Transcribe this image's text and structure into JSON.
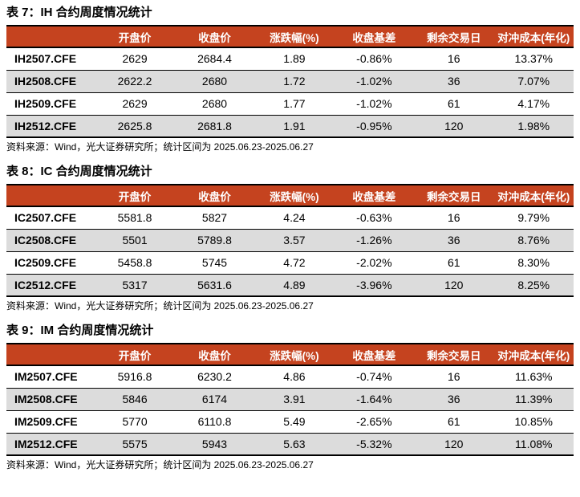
{
  "styles": {
    "header_bg": "#C5431F",
    "stripe_bg": "#DCDCDC",
    "header_text": "#FFFFFF"
  },
  "columns": [
    "",
    "开盘价",
    "收盘价",
    "涨跌幅(%)",
    "收盘基差",
    "剩余交易日",
    "对冲成本(年化)"
  ],
  "tables": [
    {
      "title": "表 7：IH 合约周度情况统计",
      "source": "资料来源：Wind，光大证券研究所；统计区间为 2025.06.23-2025.06.27",
      "rows": [
        [
          "IH2507.CFE",
          "2629",
          "2684.4",
          "1.89",
          "-0.86%",
          "16",
          "13.37%"
        ],
        [
          "IH2508.CFE",
          "2622.2",
          "2680",
          "1.72",
          "-1.02%",
          "36",
          "7.07%"
        ],
        [
          "IH2509.CFE",
          "2629",
          "2680",
          "1.77",
          "-1.02%",
          "61",
          "4.17%"
        ],
        [
          "IH2512.CFE",
          "2625.8",
          "2681.8",
          "1.91",
          "-0.95%",
          "120",
          "1.98%"
        ]
      ]
    },
    {
      "title": "表 8：IC 合约周度情况统计",
      "source": "资料来源：Wind，光大证券研究所；统计区间为 2025.06.23-2025.06.27",
      "rows": [
        [
          "IC2507.CFE",
          "5581.8",
          "5827",
          "4.24",
          "-0.63%",
          "16",
          "9.79%"
        ],
        [
          "IC2508.CFE",
          "5501",
          "5789.8",
          "3.57",
          "-1.26%",
          "36",
          "8.76%"
        ],
        [
          "IC2509.CFE",
          "5458.8",
          "5745",
          "4.72",
          "-2.02%",
          "61",
          "8.30%"
        ],
        [
          "IC2512.CFE",
          "5317",
          "5631.6",
          "4.89",
          "-3.96%",
          "120",
          "8.25%"
        ]
      ]
    },
    {
      "title": "表 9：IM 合约周度情况统计",
      "source": "资料来源：Wind，光大证券研究所；统计区间为 2025.06.23-2025.06.27",
      "rows": [
        [
          "IM2507.CFE",
          "5916.8",
          "6230.2",
          "4.86",
          "-0.74%",
          "16",
          "11.63%"
        ],
        [
          "IM2508.CFE",
          "5846",
          "6174",
          "3.91",
          "-1.64%",
          "36",
          "11.39%"
        ],
        [
          "IM2509.CFE",
          "5770",
          "6110.8",
          "5.49",
          "-2.65%",
          "61",
          "10.85%"
        ],
        [
          "IM2512.CFE",
          "5575",
          "5943",
          "5.63",
          "-5.32%",
          "120",
          "11.08%"
        ]
      ]
    }
  ]
}
